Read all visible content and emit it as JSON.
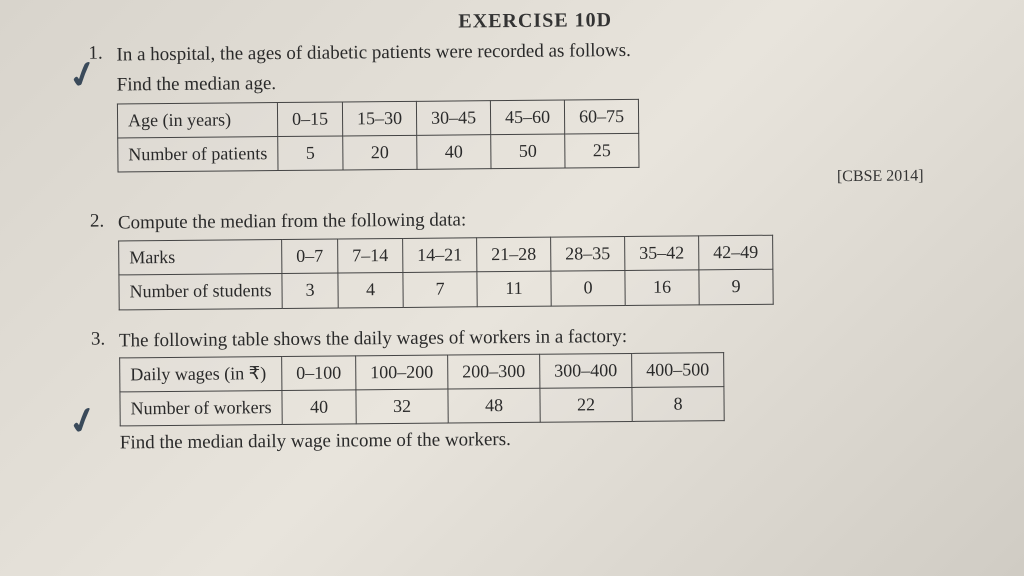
{
  "header": "EXERCISE 10D",
  "q1": {
    "num": "1.",
    "text": "In a hospital, the ages of diabetic patients were recorded as follows.",
    "sub": "Find the median age.",
    "table": {
      "row1_label": "Age (in years)",
      "row1": [
        "0–15",
        "15–30",
        "30–45",
        "45–60",
        "60–75"
      ],
      "row2_label": "Number of patients",
      "row2": [
        "5",
        "20",
        "40",
        "50",
        "25"
      ]
    },
    "source": "[CBSE 2014]"
  },
  "q2": {
    "num": "2.",
    "text": "Compute the median from the following data:",
    "table": {
      "row1_label": "Marks",
      "row1": [
        "0–7",
        "7–14",
        "14–21",
        "21–28",
        "28–35",
        "35–42",
        "42–49"
      ],
      "row2_label": "Number of students",
      "row2": [
        "3",
        "4",
        "7",
        "11",
        "0",
        "16",
        "9"
      ]
    }
  },
  "q3": {
    "num": "3.",
    "text": "The following table shows the daily wages of workers in a factory:",
    "table": {
      "row1_label": "Daily wages (in ₹)",
      "row1": [
        "0–100",
        "100–200",
        "200–300",
        "300–400",
        "400–500"
      ],
      "row2_label": "Number of workers",
      "row2": [
        "40",
        "32",
        "48",
        "22",
        "8"
      ]
    },
    "sub": "Find the median daily wage income of the workers."
  }
}
